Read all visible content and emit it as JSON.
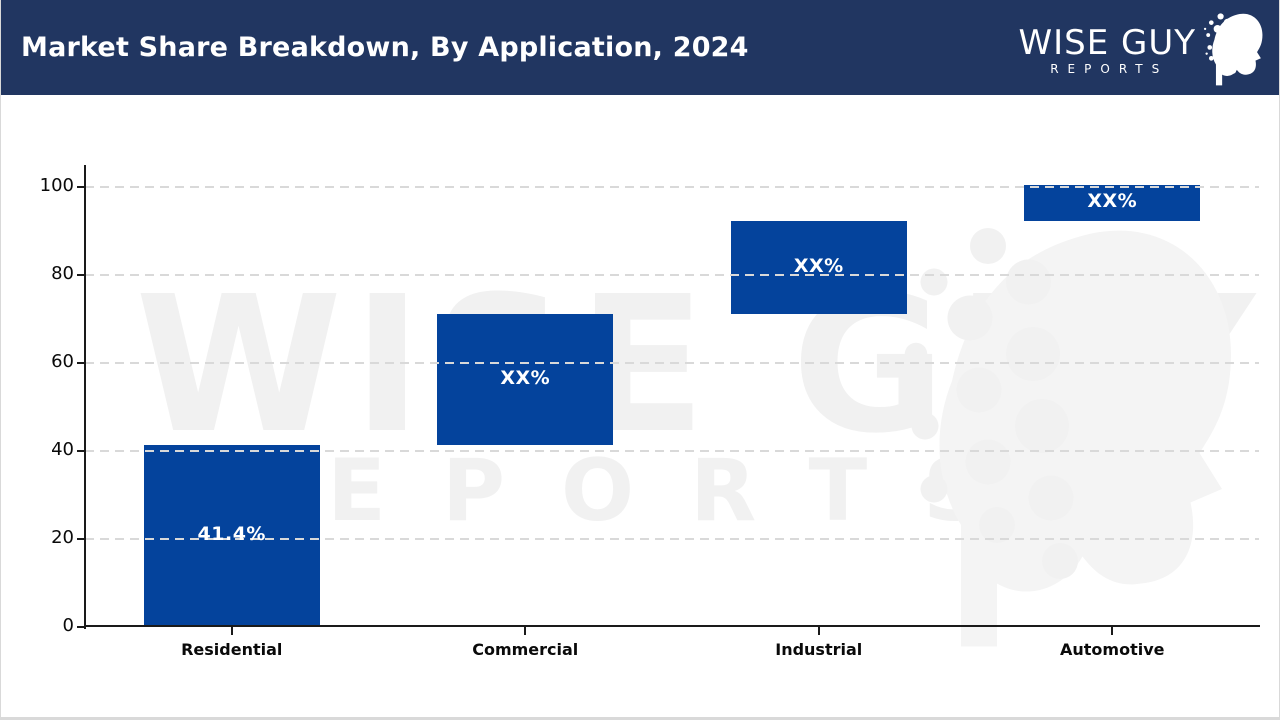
{
  "header": {
    "title": "Market Share Breakdown, By Application, 2024",
    "logo": {
      "title": "WISE GUY",
      "subtitle": "REPORTS"
    }
  },
  "watermark": {
    "line1": "WISE GUY",
    "line2": "REPORTS"
  },
  "chart_data": {
    "type": "bar",
    "variant": "waterfall",
    "title": "Market Share Breakdown, By Application, 2024",
    "categories": [
      "Residential",
      "Commercial",
      "Industrial",
      "Automotive"
    ],
    "segments": [
      {
        "category": "Residential",
        "start": 0,
        "end": 41.4,
        "label": "41.4%"
      },
      {
        "category": "Commercial",
        "start": 41.4,
        "end": 71.1,
        "label": "XX%"
      },
      {
        "category": "Industrial",
        "start": 71.1,
        "end": 92.3,
        "label": "XX%"
      },
      {
        "category": "Automotive",
        "start": 92.3,
        "end": 100.5,
        "label": "XX%"
      }
    ],
    "xlabel": "",
    "ylabel": "",
    "ylim": [
      0,
      105
    ],
    "yticks": [
      0,
      20,
      40,
      60,
      80,
      100
    ],
    "grid": "dashed-horizontal",
    "legend": "none",
    "bar_color": "#04439c",
    "bar_label_color": "#ffffff"
  },
  "colors": {
    "header_bg": "#213661",
    "bar": "#04439c",
    "gridline": "#d9d9d9",
    "axis": "#1a1a1a",
    "watermark": "#f1f1f1",
    "page_border": "#d9d9d9"
  }
}
